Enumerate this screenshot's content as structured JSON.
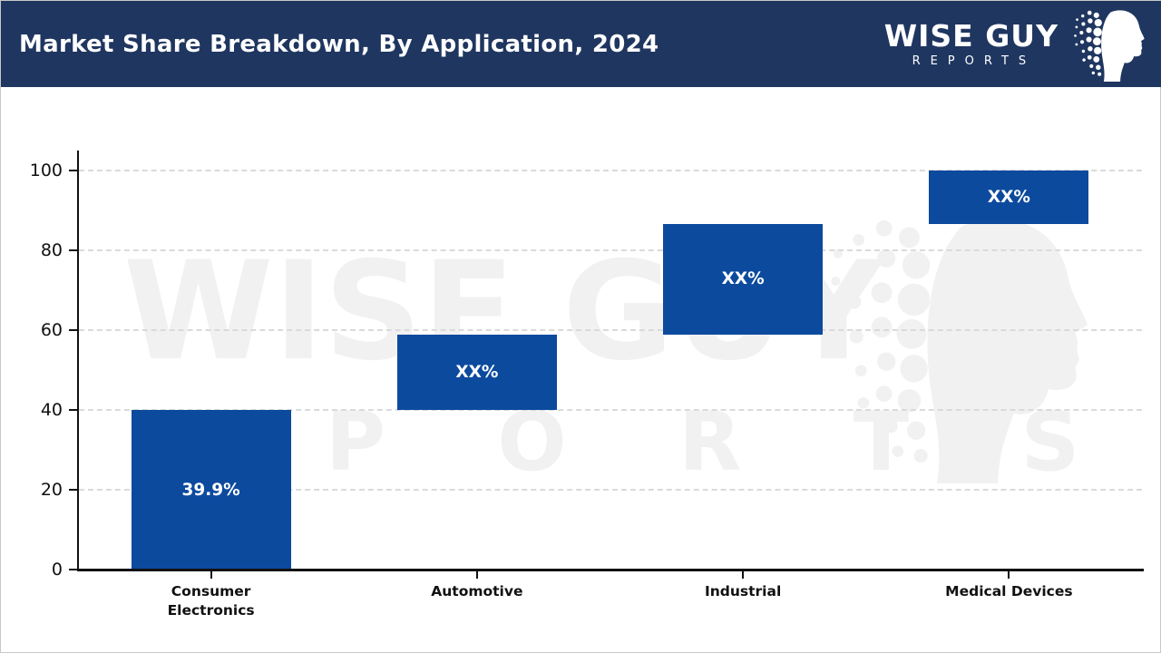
{
  "header": {
    "title": "Market Share Breakdown, By Application, 2024",
    "brand_line1": "WISE GUY",
    "brand_line2": "REPORTS",
    "bg_color": "#1f3660"
  },
  "watermark": {
    "line1": "WISE GUY",
    "line2": "P O R T S"
  },
  "chart_data": {
    "type": "bar",
    "subtype": "waterfall",
    "title": "Market Share Breakdown, By Application, 2024",
    "units": "percent market share",
    "categories": [
      "Consumer Electronics",
      "Automotive",
      "Industrial",
      "Medical Devices"
    ],
    "segments": [
      {
        "category": "Consumer Electronics",
        "start": 0,
        "end": 39.9,
        "value": 39.9,
        "label": "39.9%"
      },
      {
        "category": "Automotive",
        "start": 39.9,
        "end": 58.9,
        "value": 19.0,
        "label": "XX%"
      },
      {
        "category": "Industrial",
        "start": 58.9,
        "end": 86.6,
        "value": 27.7,
        "label": "XX%"
      },
      {
        "category": "Medical Devices",
        "start": 86.6,
        "end": 100.0,
        "value": 13.4,
        "label": "XX%"
      }
    ],
    "ylim": [
      0,
      100
    ],
    "yticks": [
      0,
      20,
      40,
      60,
      80,
      100
    ],
    "ytick_labels": [
      "0",
      "20",
      "40",
      "60",
      "80",
      "100"
    ],
    "bar_color": "#0c4a9e",
    "bar_label_color": "#ffffff",
    "grid": "horizontal-dashed",
    "grid_color": "#dadada",
    "legend": "none"
  }
}
